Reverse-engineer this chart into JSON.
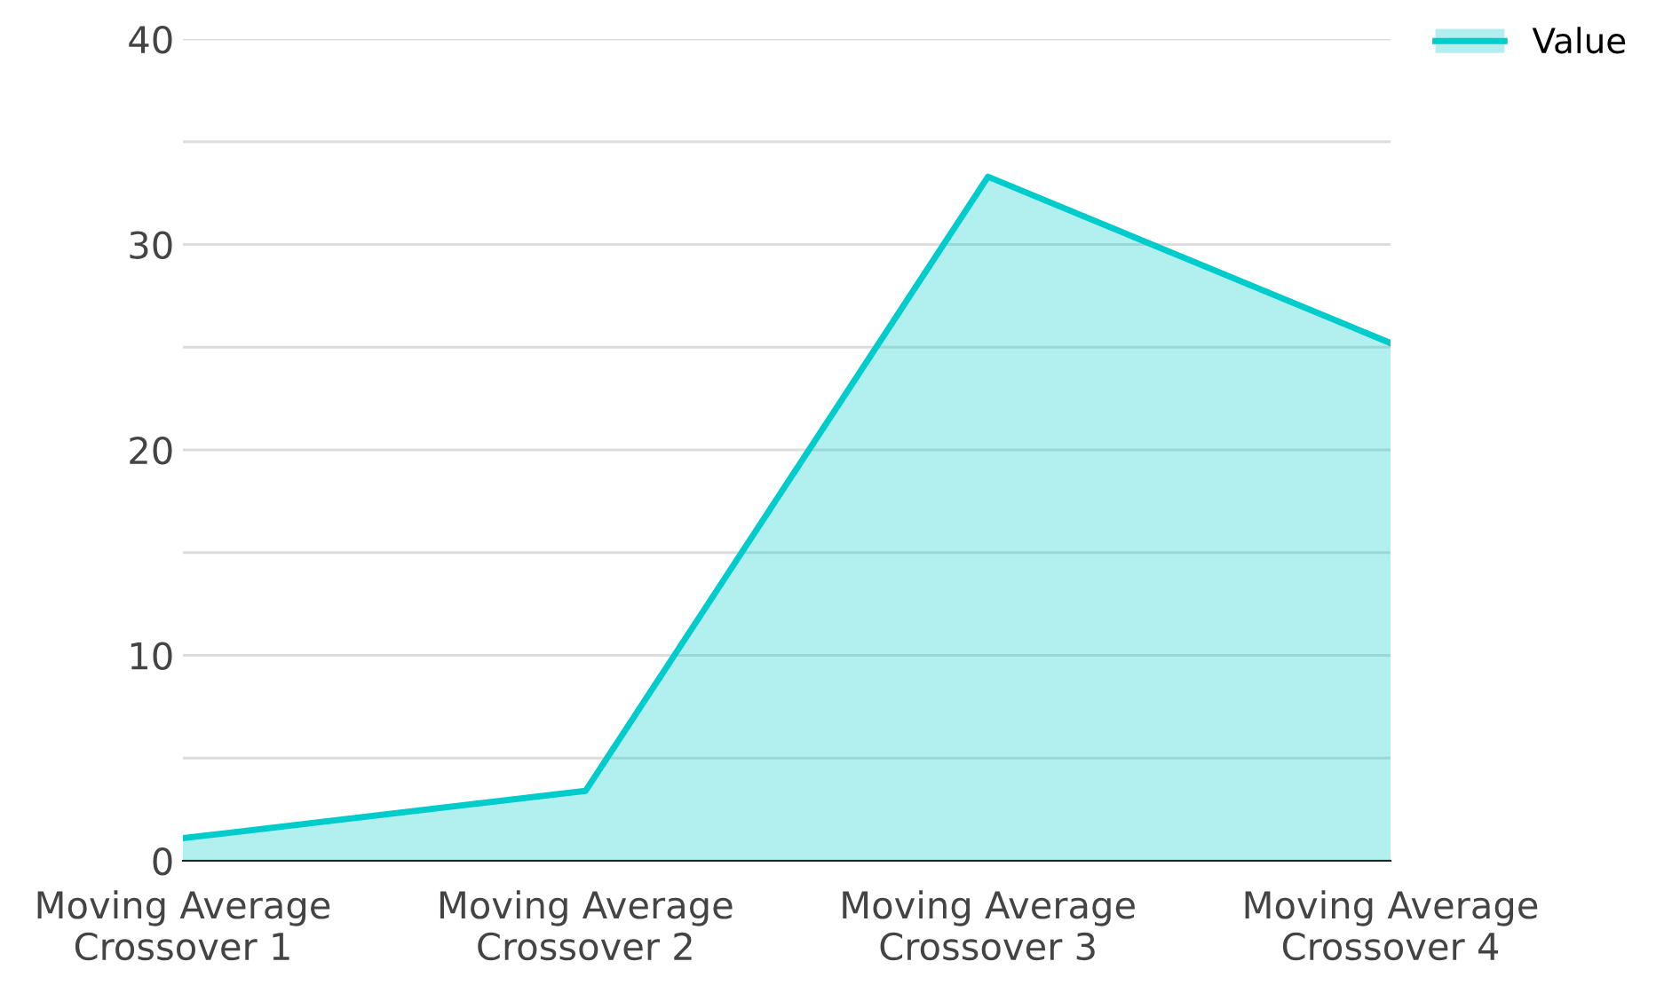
{
  "chart_data": {
    "type": "area",
    "categories": [
      "Moving Average\nCrossover 1",
      "Moving Average\nCrossover 2",
      "Moving Average\nCrossover 3",
      "Moving Average\nCrossover 4"
    ],
    "series": [
      {
        "name": "Value",
        "color": "#00cccc",
        "values": [
          1.1,
          3.4,
          33.3,
          25.2
        ]
      }
    ],
    "ylim": [
      0,
      40
    ],
    "yticks": [
      0,
      {
        "value": 5,
        "label": null
      },
      10,
      {
        "value": 15,
        "label": null
      },
      20,
      {
        "value": 25,
        "label": null
      },
      30,
      {
        "value": 35,
        "label": null
      },
      40
    ],
    "grid": "y",
    "legend": "top right"
  }
}
